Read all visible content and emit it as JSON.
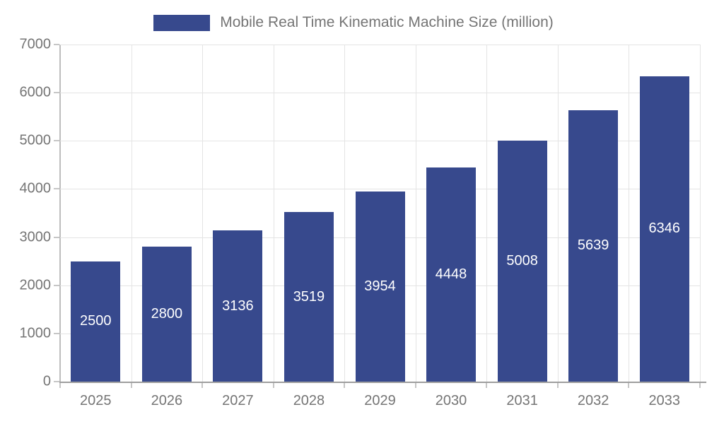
{
  "chart_data": {
    "type": "bar",
    "title": "Mobile Real Time Kinematic Machine Size (million)",
    "legend": "Mobile Real Time Kinematic Machine Size (million)",
    "legend_position": "top",
    "categories": [
      "2025",
      "2026",
      "2027",
      "2028",
      "2029",
      "2030",
      "2031",
      "2032",
      "2033"
    ],
    "values": [
      2500,
      2800,
      3136,
      3519,
      3954,
      4448,
      5008,
      5639,
      6346
    ],
    "xlabel": "",
    "ylabel": "",
    "ylim": [
      0,
      7000
    ],
    "yticks": [
      0,
      1000,
      2000,
      3000,
      4000,
      5000,
      6000,
      7000
    ],
    "grid": true,
    "bar_color": "#37498D",
    "bar_label_color": "#ffffff",
    "axis_text_color": "#757575"
  }
}
